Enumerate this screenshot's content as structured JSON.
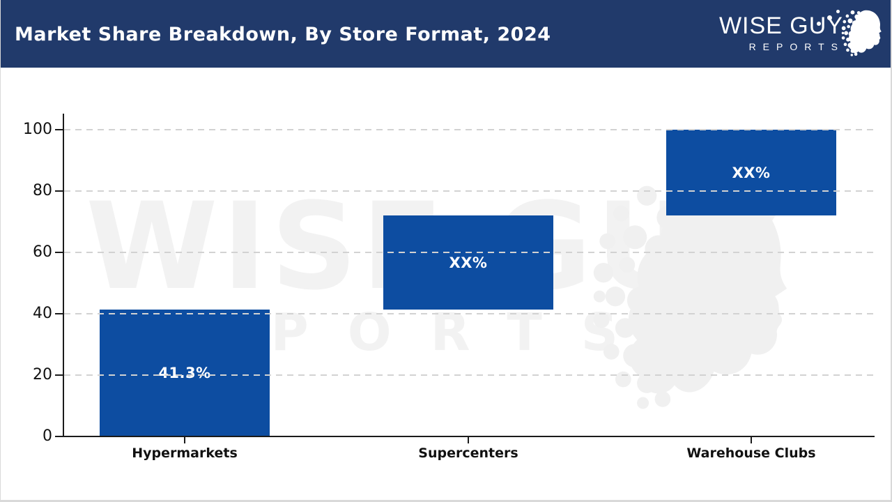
{
  "header": {
    "title": "Market Share Breakdown, By Store Format, 2024",
    "logo": {
      "brand_top": "WISE GUY",
      "brand_bottom": "REPORTS"
    }
  },
  "watermark": {
    "big_text": "WISE GUY",
    "small_text": "REPORTS"
  },
  "chart_data": {
    "type": "bar",
    "subtype": "waterfall",
    "title": "Market Share Breakdown, By Store Format, 2024",
    "categories": [
      "Hypermarkets",
      "Supercenters",
      "Warehouse Clubs"
    ],
    "bars": [
      {
        "category": "Hypermarkets",
        "label": "41.3%",
        "start": 0,
        "end": 41.3
      },
      {
        "category": "Supercenters",
        "label": "XX%",
        "start": 41.3,
        "end": 72
      },
      {
        "category": "Warehouse Clubs",
        "label": "XX%",
        "start": 72,
        "end": 100
      }
    ],
    "xlabel": "",
    "ylabel": "",
    "yticks": [
      0,
      20,
      40,
      60,
      80,
      100
    ],
    "ylim": [
      0,
      105
    ],
    "grid": {
      "axis": "y",
      "style": "dashed",
      "drawn_on_top_of_bars": true
    },
    "legend": "none",
    "colors": {
      "bar": "#0d4da1",
      "bar_label": "#ffffff",
      "header_bg": "#213a6b",
      "grid": "#d2d2d2",
      "watermark": "#f2f2f2",
      "axis": "#1a1a1a"
    }
  }
}
